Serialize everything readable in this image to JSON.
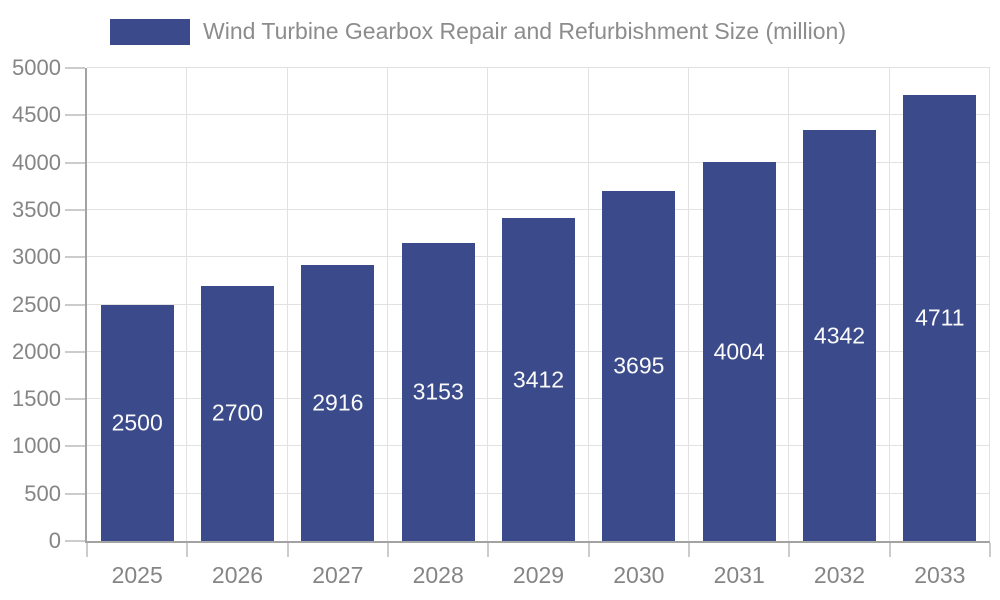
{
  "chart_data": {
    "type": "bar",
    "title": "Wind Turbine Gearbox Repair and Refurbishment Size (million)",
    "legend_entries": [
      "Wind Turbine Gearbox Repair and Refurbishment Size (million)"
    ],
    "legend_position": "top-left",
    "categories": [
      "2025",
      "2026",
      "2027",
      "2028",
      "2029",
      "2030",
      "2031",
      "2032",
      "2033"
    ],
    "values": [
      2500,
      2700,
      2916,
      3153,
      3412,
      3695,
      4004,
      4342,
      4711
    ],
    "bar_value_labels": [
      "2500",
      "2700",
      "2916",
      "3153",
      "3412",
      "3695",
      "4004",
      "4342",
      "4711"
    ],
    "xlabel": "",
    "ylabel": "",
    "ylim": [
      0,
      5000
    ],
    "y_ticks": [
      0,
      500,
      1000,
      1500,
      2000,
      2500,
      3000,
      3500,
      4000,
      4500,
      5000
    ],
    "grid": "both"
  },
  "colors": {
    "bar": "#3A4A8B",
    "grid": "#e2e2e2",
    "axis": "#a3a3a3",
    "tick": "#cccccc",
    "axis_text": "#858585",
    "title_text": "#8c8c8c",
    "value_label": "#fafafa",
    "background": "#ffffff"
  }
}
